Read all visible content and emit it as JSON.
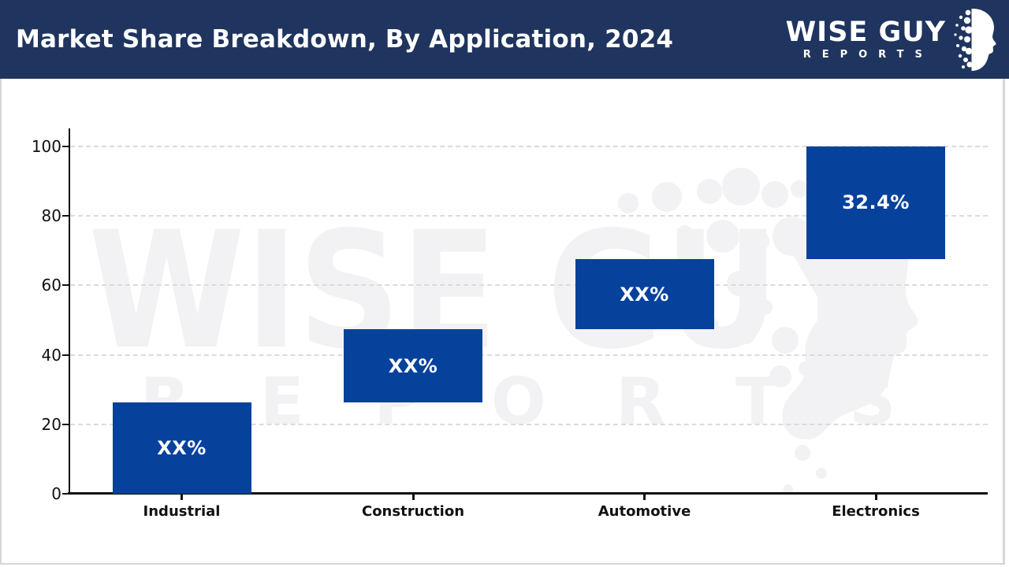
{
  "header": {
    "title": "Market Share Breakdown, By Application, 2024",
    "logo": {
      "line1": "WISE GUY",
      "line2": "REPORTS"
    }
  },
  "watermark": {
    "line1": "WISE GUY",
    "line2": "R E P O R T S"
  },
  "chart_data": {
    "type": "bar",
    "subtype": "floating-segment waterfall (stacked market-share breakdown)",
    "title": "Market Share Breakdown, By Application, 2024",
    "categories": [
      "Industrial",
      "Construction",
      "Automotive",
      "Electronics"
    ],
    "segments": [
      {
        "category": "Industrial",
        "start": 0,
        "end": 26.2,
        "value_label": "XX%"
      },
      {
        "category": "Construction",
        "start": 26.2,
        "end": 47.3,
        "value_label": "XX%"
      },
      {
        "category": "Automotive",
        "start": 47.3,
        "end": 67.6,
        "value_label": "XX%"
      },
      {
        "category": "Electronics",
        "start": 67.6,
        "end": 100.0,
        "value_label": "32.4%"
      }
    ],
    "values_pct": [
      26.2,
      21.1,
      20.3,
      32.4
    ],
    "xlabel": "",
    "ylabel": "",
    "ylim": [
      0,
      105
    ],
    "yticks": [
      0,
      20,
      40,
      60,
      80,
      100
    ],
    "grid": true,
    "grid_style": "horizontal dashed",
    "legend": "none",
    "bar_color": "#06419c",
    "bar_label_color": "#ffffff",
    "axis_color": "#111111",
    "grid_color": "#dbdbdb",
    "header_bg": "#1f345e",
    "watermark_color": "#f2f2f4"
  }
}
